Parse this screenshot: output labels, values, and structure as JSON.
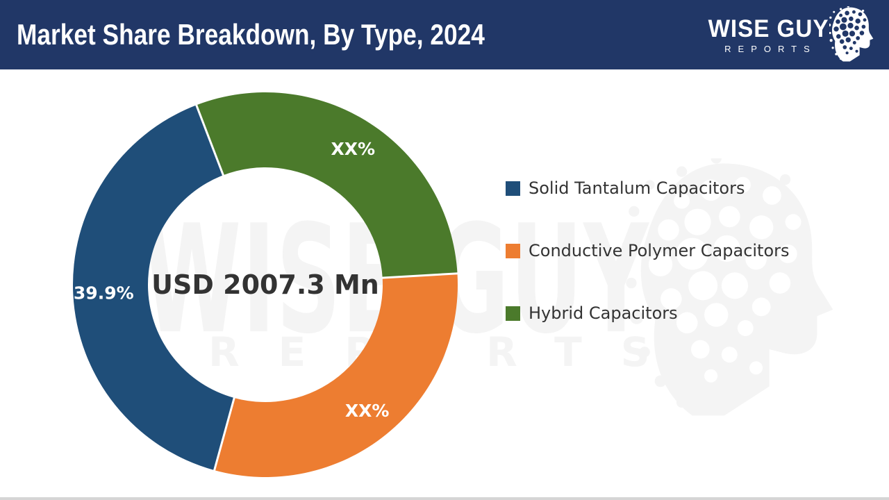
{
  "header": {
    "title": "Market Share Breakdown, By Type, 2024",
    "brand": {
      "wordmark": "WISE GUY",
      "subtext": "REPORTS"
    }
  },
  "watermark": {
    "line1": "WISE GUY",
    "line2": "REPORTS"
  },
  "colors": {
    "header_background": "#213767",
    "blue_slice": "#1f4e79",
    "orange_slice": "#ed7d31",
    "green_slice": "#4b7a2b",
    "legend_text": "#333333",
    "center_text": "#333333",
    "footer_divider": "#d5d5d5"
  },
  "chart_data": {
    "type": "pie",
    "subtype": "donut",
    "title": "Market Share Breakdown, By Type, 2024",
    "center_label": "USD 2007.3 Mn",
    "start_angle_deg": 111,
    "direction": "counterclockwise",
    "inner_radius_ratio": 0.61,
    "legend_position": "right",
    "slices": [
      {
        "label": "Solid Tantalum Capacitors",
        "value_pct": 39.9,
        "display": "39.9%",
        "color": "#1f4e79"
      },
      {
        "label": "Conductive Polymer Capacitors",
        "value_pct": 30.2,
        "display": "XX%",
        "color": "#ed7d31"
      },
      {
        "label": "Hybrid Capacitors",
        "value_pct": 29.9,
        "display": "XX%",
        "color": "#4b7a2b"
      }
    ]
  }
}
